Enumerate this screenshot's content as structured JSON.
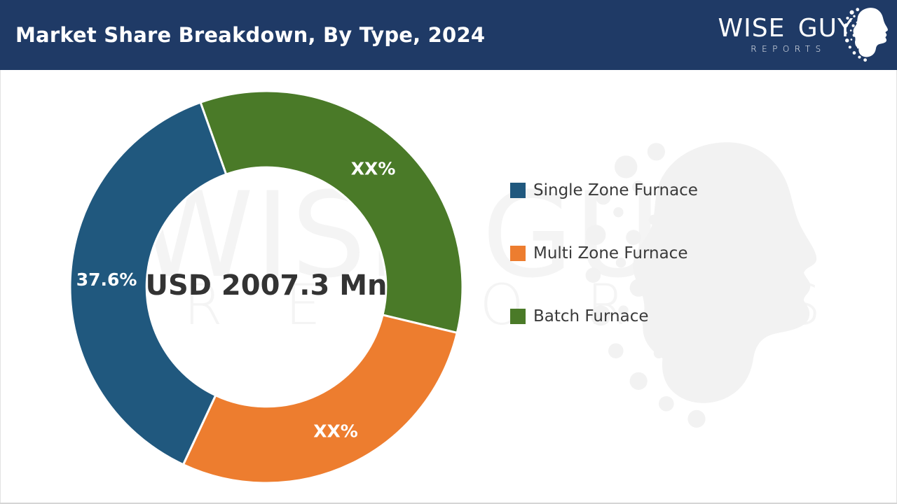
{
  "header": {
    "title": "Market Share Breakdown, By Type, 2024",
    "bg_color": "#1F3A66",
    "logo": {
      "line1": "WISE GUY",
      "line2": "REPORTS"
    }
  },
  "watermark": {
    "line1": "WISE GUY",
    "line2": "R E P O R T S"
  },
  "chart_data": {
    "type": "pie",
    "donut": true,
    "title": "Market Share Breakdown, By Type, 2024",
    "center_label": "USD 2007.3 Mn",
    "start_angle_deg": -19.6,
    "inner_radius_ratio": 0.61,
    "segments": [
      {
        "name": "Batch Furnace",
        "share_pct": 34.2,
        "label": "XX%",
        "color": "#4A7A28"
      },
      {
        "name": "Multi Zone Furnace",
        "share_pct": 28.2,
        "label": "XX%",
        "color": "#ED7D2F"
      },
      {
        "name": "Single Zone Furnace",
        "share_pct": 37.6,
        "label": "37.6%",
        "color": "#20587E"
      }
    ],
    "legend_position": "right",
    "legend": [
      {
        "label": "Single Zone Furnace",
        "color": "#20587E"
      },
      {
        "label": "Multi Zone Furnace",
        "color": "#ED7D2F"
      },
      {
        "label": "Batch Furnace",
        "color": "#4A7A28"
      }
    ]
  }
}
